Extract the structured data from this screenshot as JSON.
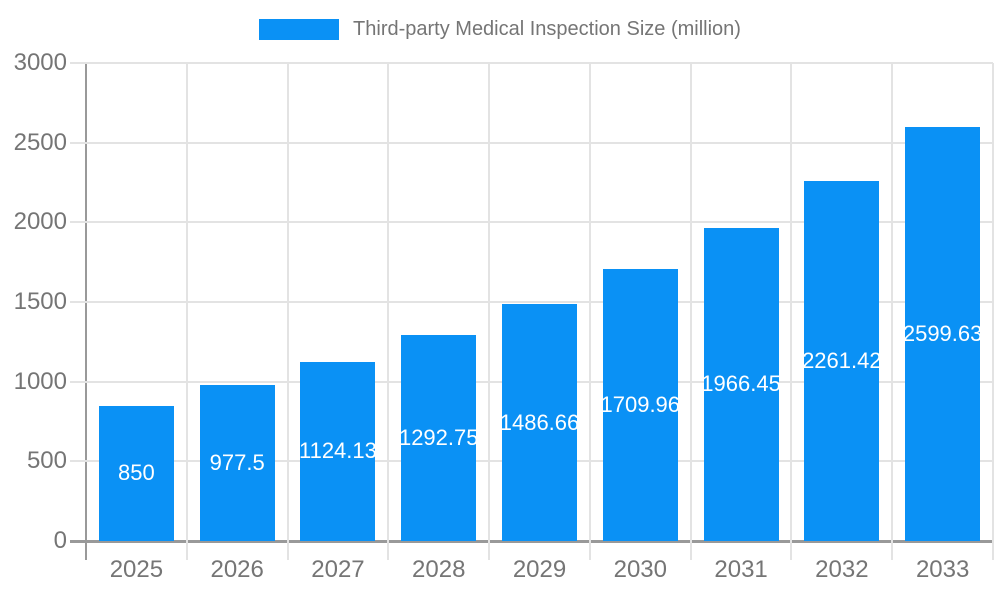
{
  "chart_data": {
    "type": "bar",
    "legend": "Third-party Medical Inspection Size (million)",
    "legend_position": "top",
    "categories": [
      "2025",
      "2026",
      "2027",
      "2028",
      "2029",
      "2030",
      "2031",
      "2032",
      "2033"
    ],
    "values": [
      850,
      977.5,
      1124.13,
      1292.75,
      1486.66,
      1709.96,
      1966.45,
      2261.42,
      2599.63
    ],
    "bar_labels": [
      "850",
      "977.5",
      "1124.13",
      "1292.75",
      "1486.66",
      "1709.96",
      "1966.45",
      "2261.42",
      "2599.63"
    ],
    "xlabel": "",
    "ylabel": "",
    "ylim": [
      0,
      3000
    ],
    "yticks": [
      0,
      500,
      1000,
      1500,
      2000,
      2500,
      3000
    ],
    "grid": true,
    "colors": {
      "bar": "#0a91f5",
      "axis": "#999999",
      "gridline": "#e3e3e3",
      "axis_text": "#757575",
      "bar_label_text": "#ffffff",
      "background": "#ffffff"
    }
  }
}
